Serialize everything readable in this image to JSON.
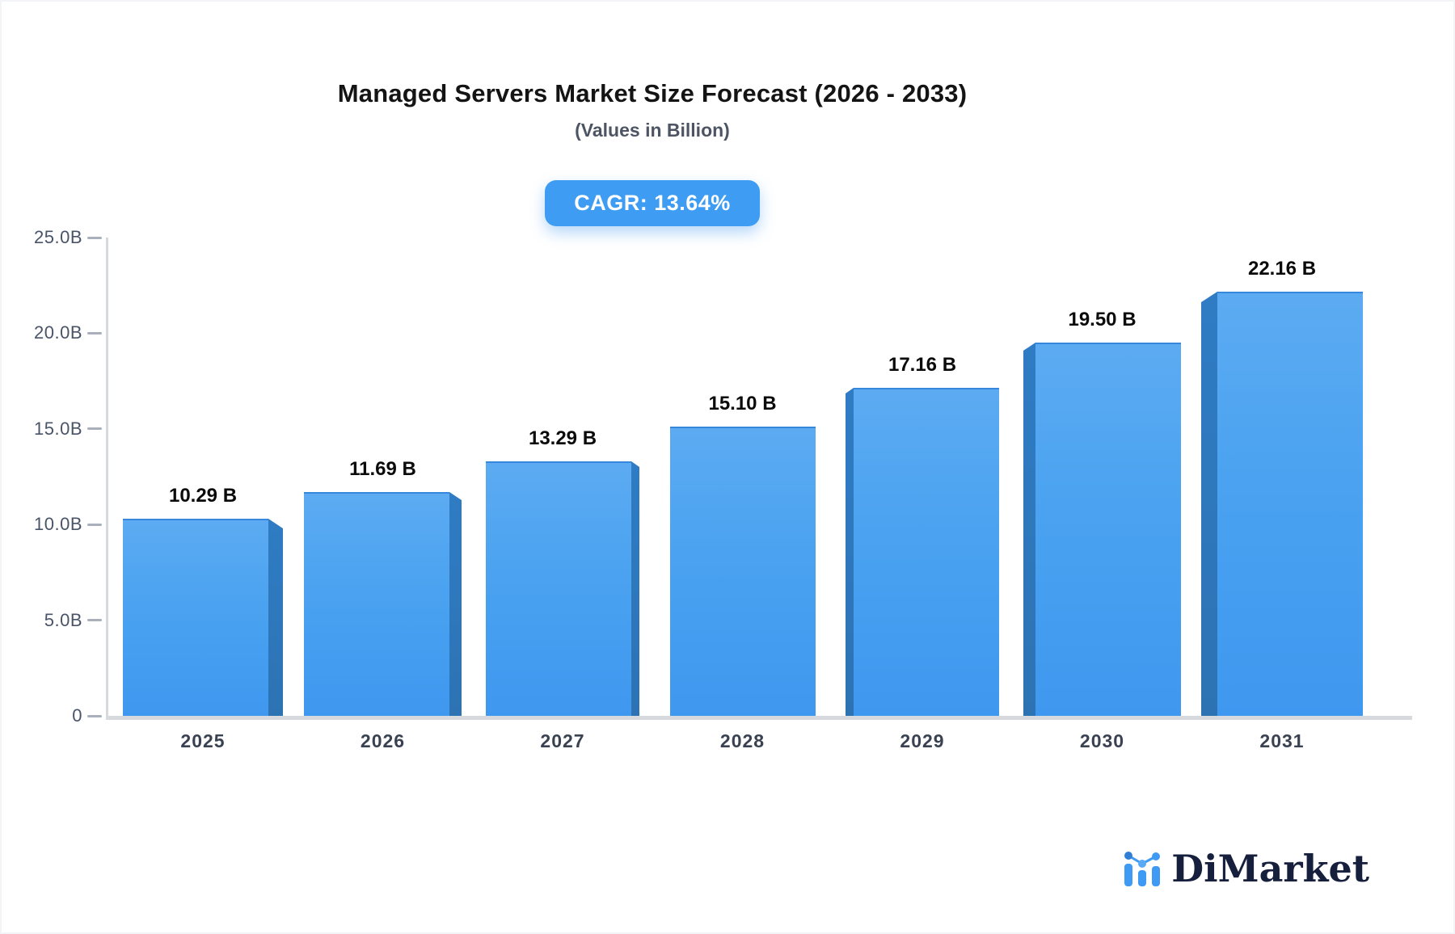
{
  "header": {
    "title": "Managed Servers Market Size Forecast (2026 - 2033)",
    "subtitle": "(Values in Billion)",
    "cagr_badge": "CAGR: 13.64%"
  },
  "brand": {
    "name": "DiMarket",
    "icon": "bar-chart-logo-icon"
  },
  "colors": {
    "accent_blue": "#3f9cf3",
    "bar_gradient_top": "#5cabf2",
    "bar_gradient_bottom": "#3f98ef",
    "bar_side_3d": "#2d74b6",
    "bar_top_edge": "#3787dd",
    "axis_line": "#d6dade",
    "tick_mark": "#a9afbb",
    "y_label_text": "#4a5468",
    "x_label_text": "#3a4252",
    "title_text": "#141414",
    "subtitle_text": "#4d5564",
    "badge_text": "#ffffff",
    "brand_navy": "#16203c"
  },
  "chart_data": {
    "type": "bar",
    "title": "Managed Servers Market Size Forecast (2026 - 2033)",
    "subtitle": "(Values in Billion)",
    "annotation": "CAGR: 13.64%",
    "categories": [
      "2025",
      "2026",
      "2027",
      "2028",
      "2029",
      "2030",
      "2031"
    ],
    "values": [
      10.29,
      11.69,
      13.29,
      15.1,
      17.16,
      19.5,
      22.16
    ],
    "value_labels": [
      "10.29 B",
      "11.69 B",
      "13.29 B",
      "15.10 B",
      "17.16 B",
      "19.50 B",
      "22.16 B"
    ],
    "y_ticks": [
      "25.0B",
      "20.0B",
      "15.0B",
      "10.0B",
      "5.0B",
      "0"
    ],
    "y_tick_values": [
      25,
      20,
      15,
      10,
      5,
      0
    ],
    "ylim": [
      0,
      25
    ],
    "xlabel": "",
    "ylabel": "",
    "grid": false,
    "legend": false,
    "style": "3d-perspective-bars"
  }
}
